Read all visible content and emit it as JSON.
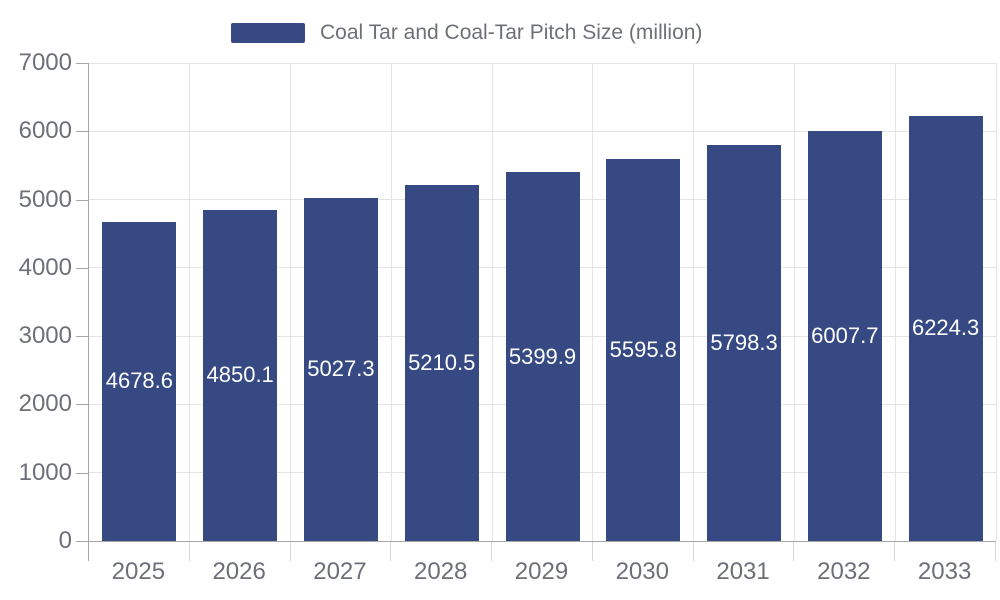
{
  "legend": {
    "label": "Coal Tar and Coal-Tar Pitch Size (million)"
  },
  "chart_data": {
    "type": "bar",
    "title": "",
    "categories": [
      "2025",
      "2026",
      "2027",
      "2028",
      "2029",
      "2030",
      "2031",
      "2032",
      "2033"
    ],
    "series": [
      {
        "name": "Coal Tar and Coal-Tar Pitch Size (million)",
        "values": [
          4678.6,
          4850.1,
          5027.3,
          5210.5,
          5399.9,
          5595.8,
          5798.3,
          6007.7,
          6224.3
        ]
      }
    ],
    "xlabel": "",
    "ylabel": "",
    "ylim": [
      0,
      7000
    ],
    "ytick_interval": 1000,
    "ytick_labels": [
      "0",
      "1000",
      "2000",
      "3000",
      "4000",
      "5000",
      "6000",
      "7000"
    ],
    "grid": true,
    "legend_position": "top",
    "value_label_position": "inside-center",
    "value_label_decimals": 1
  },
  "colors": {
    "bar": "#364983",
    "bar_label": "#FFFFFF",
    "axis_line": "#A6A6A6",
    "x_tick": "#D6D6D6",
    "grid_line": "#E4E4E4",
    "text": "#6E7079",
    "background": "#FFFFFF"
  }
}
